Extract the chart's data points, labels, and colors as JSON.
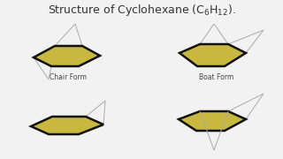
{
  "bg_color": "#f2f2f2",
  "fill_color": "#c8b840",
  "edge_color": "#111111",
  "thin_color": "#aaaaaa",
  "label_chair": "Chair Form",
  "label_boat": "Boat Form",
  "lw_thick": 1.8,
  "lw_thin": 0.7,
  "title_fs": 9.0,
  "label_fs": 5.5,
  "title": "Structure of Cyclohexane ($\\mathregular{C_6H_{12}}$)."
}
